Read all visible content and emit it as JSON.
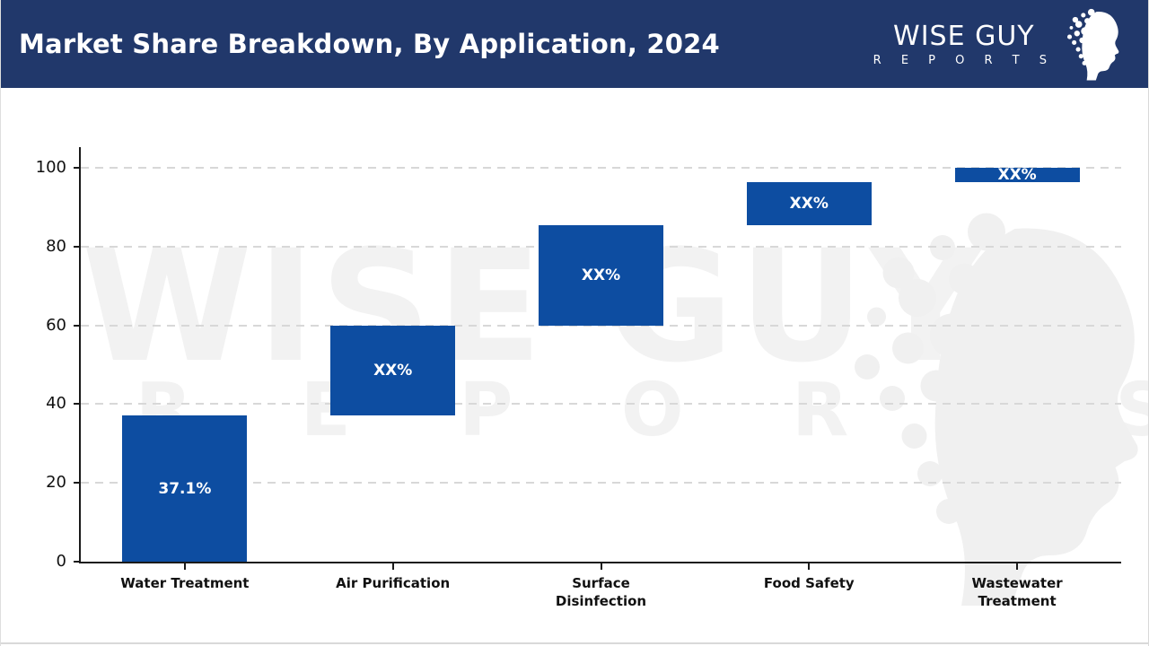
{
  "header": {
    "title": "Market Share Breakdown, By Application, 2024",
    "logo": {
      "wordmark": "WISE GUY",
      "subtitle": "R E P O R T S"
    }
  },
  "watermark": {
    "wordmark": "WISE GUY",
    "subtitle": "R E P O R T S"
  },
  "chart_data": {
    "type": "bar",
    "subtype": "waterfall-floating-bars",
    "title": "",
    "xlabel": "",
    "ylabel": "",
    "categories": [
      "Water Treatment",
      "Air Purification",
      "Surface Disinfection",
      "Food Safety",
      "Wastewater Treatment"
    ],
    "tick_display": [
      "Water Treatment",
      "Air Purification",
      "Surface\nDisinfection",
      "Food Safety",
      "Wastewater\nTreatment"
    ],
    "segments": [
      {
        "category": "Water Treatment",
        "start": 0,
        "end": 37.1,
        "label": "37.1%"
      },
      {
        "category": "Air Purification",
        "start": 37.1,
        "end": 60.0,
        "label": "XX%"
      },
      {
        "category": "Surface Disinfection",
        "start": 60.0,
        "end": 85.4,
        "label": "XX%"
      },
      {
        "category": "Food Safety",
        "start": 85.4,
        "end": 96.4,
        "label": "XX%"
      },
      {
        "category": "Wastewater Treatment",
        "start": 96.4,
        "end": 100.0,
        "label": "XX%"
      }
    ],
    "y_ticks": [
      0,
      20,
      40,
      60,
      80,
      100
    ],
    "ylim": [
      0,
      105
    ],
    "grid": true,
    "grid_style": "dashed",
    "legend": "none",
    "bar_color": "#0d4da1",
    "label_color": "#ffffff"
  },
  "colors": {
    "header_bg": "#21386b",
    "bar": "#0d4da1",
    "grid": "#d8d8d8",
    "axis": "#1a1a1a",
    "watermark": "#f2f2f2"
  }
}
